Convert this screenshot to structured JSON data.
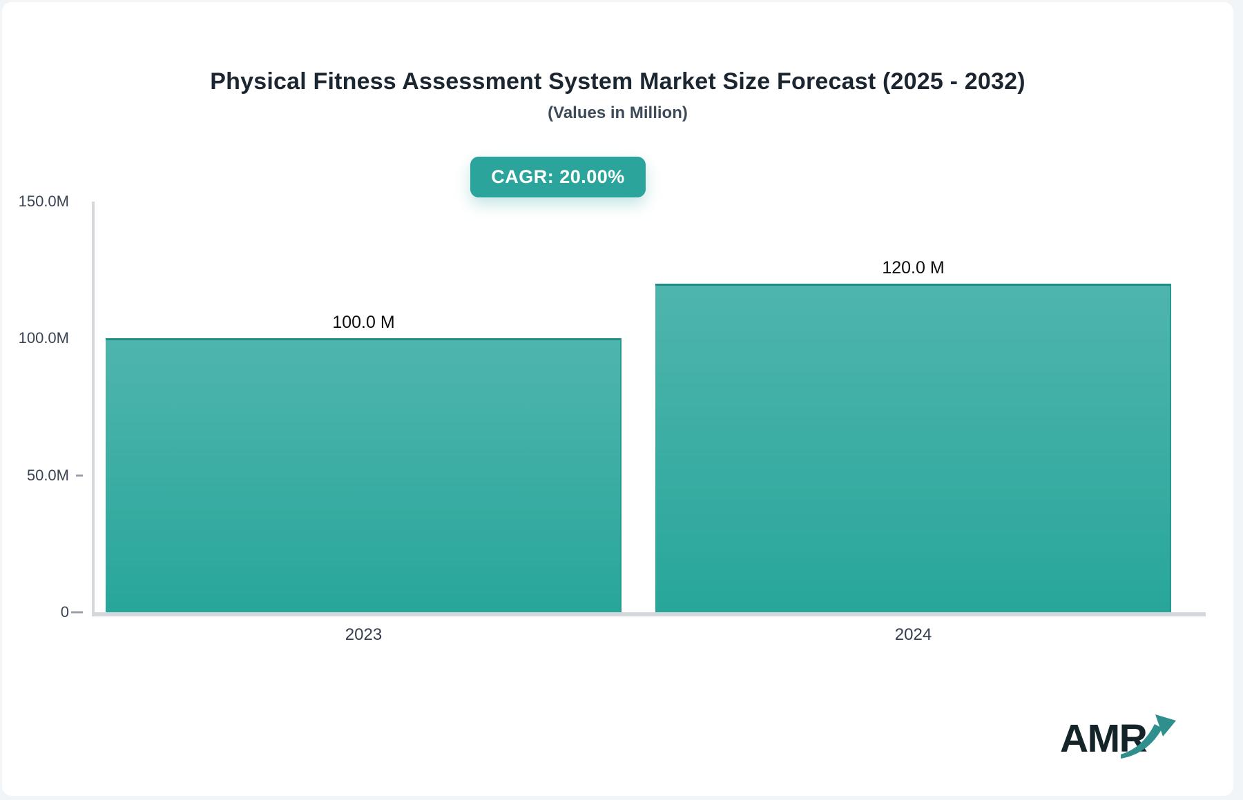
{
  "header": {
    "title": "Physical Fitness Assessment System Market Size Forecast (2025 - 2032)",
    "subtitle": "(Values in Million)"
  },
  "badge": {
    "label": "CAGR: 20.00%"
  },
  "chart_data": {
    "type": "bar",
    "title": "Physical Fitness Assessment System Market Size Forecast (2025 - 2032)",
    "subtitle": "(Values in Million)",
    "cagr": "CAGR: 20.00%",
    "categories": [
      "2023",
      "2024"
    ],
    "values": [
      100,
      120
    ],
    "value_labels": [
      "100.0 M",
      "120.0 M"
    ],
    "unit": "Million",
    "ylim": [
      0,
      150
    ],
    "yticks": [
      {
        "label": "150.0M",
        "value": 150,
        "dash": false
      },
      {
        "label": "100.0M",
        "value": 100,
        "dash": false
      },
      {
        "label": "50.0M",
        "value": 50,
        "dash": true
      },
      {
        "label": "0",
        "value": 0,
        "dash": true
      }
    ],
    "grid": false,
    "legend": false,
    "xlabel": "",
    "ylabel": ""
  },
  "logo": {
    "text": "AMR"
  },
  "colors": {
    "accent": "#2ba49b",
    "bar_gradient_top": "#4fb5ac",
    "bar_gradient_bottom": "#28a69a",
    "bar_border": "#1e8d85",
    "axis_line": "#d4d8dd",
    "title_text": "#1b2631",
    "axis_text": "#3a4454",
    "logo_text": "#152428",
    "logo_arrow": "#2e8f8d"
  }
}
